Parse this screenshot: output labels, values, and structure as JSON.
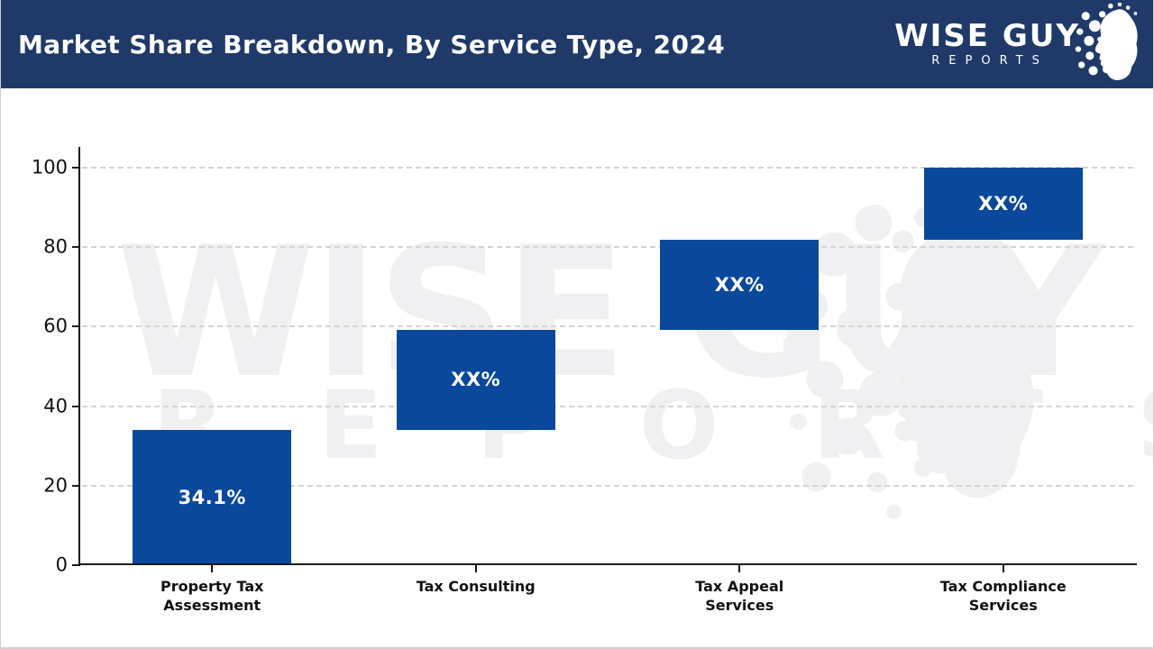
{
  "header": {
    "title": "Market Share Breakdown, By Service Type, 2024",
    "bg_color": "#1f3a68",
    "logo": {
      "wordmark": "WISE GUY",
      "subtext": "REPORTS"
    }
  },
  "watermark": {
    "line1": "WISE GUY",
    "line2": "R E P O R T S",
    "color": "#f0f0f2"
  },
  "chart_data": {
    "type": "bar",
    "variant": "waterfall",
    "title": "Market Share Breakdown, By Service Type, 2024",
    "categories": [
      "Property Tax Assessment",
      "Tax Consulting",
      "Tax Appeal Services",
      "Tax Compliance Services"
    ],
    "category_lines": [
      [
        "Property Tax",
        "Assessment"
      ],
      [
        "Tax Consulting"
      ],
      [
        "Tax Appeal",
        "Services"
      ],
      [
        "Tax Compliance",
        "Services"
      ]
    ],
    "segments": [
      {
        "category": "Property Tax Assessment",
        "start": 0,
        "end": 34.1,
        "label": "34.1%"
      },
      {
        "category": "Tax Consulting",
        "start": 34.1,
        "end": 59.1,
        "label": "XX%"
      },
      {
        "category": "Tax Appeal Services",
        "start": 59.1,
        "end": 81.8,
        "label": "XX%"
      },
      {
        "category": "Tax Compliance Services",
        "start": 81.8,
        "end": 100,
        "label": "XX%"
      }
    ],
    "values": [
      34.1,
      25.0,
      22.7,
      18.2
    ],
    "ylim": [
      0,
      100
    ],
    "yticks": [
      0,
      20,
      40,
      60,
      80,
      100
    ],
    "grid": "horizontal-dashed",
    "legend": "none",
    "bar_color": "#0a489c",
    "bar_label_color": "#ffffff",
    "axis_color": "#1a1a1a",
    "gridline_color": "#d4d4d4"
  }
}
